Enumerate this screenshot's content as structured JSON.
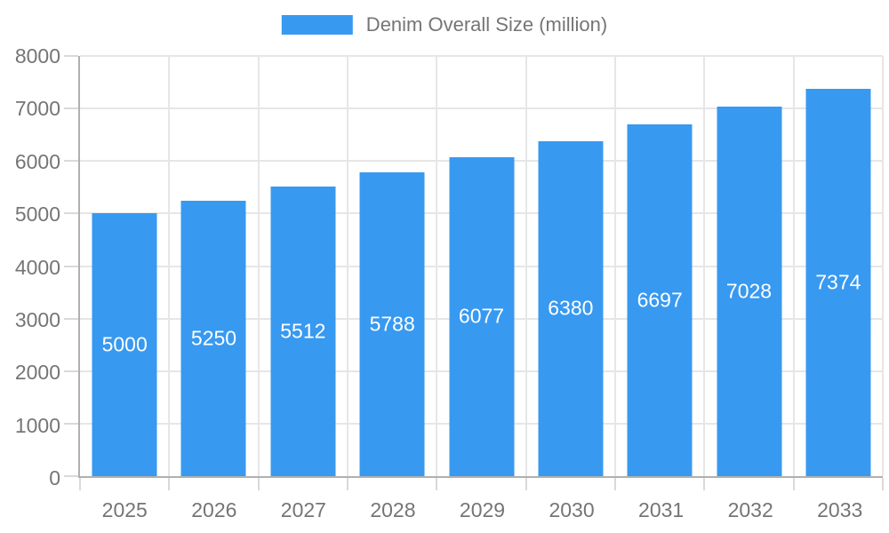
{
  "legend": {
    "label": "Denim Overall Size (million)"
  },
  "colors": {
    "bar": "#3899f0",
    "grid": "#e6e6e6",
    "axis": "#b0b0b0",
    "tick": "#d9d9d9",
    "text": "#757575",
    "bar_label": "#ffffff",
    "background": "#ffffff"
  },
  "chart_data": {
    "type": "bar",
    "title": "",
    "categories": [
      "2025",
      "2026",
      "2027",
      "2028",
      "2029",
      "2030",
      "2031",
      "2032",
      "2033"
    ],
    "series": [
      {
        "name": "Denim Overall Size (million)",
        "values": [
          5000,
          5250,
          5512,
          5788,
          6077,
          6380,
          6697,
          7028,
          7374
        ]
      }
    ],
    "xlabel": "",
    "ylabel": "",
    "ylim": [
      0,
      8000
    ],
    "y_tick_step": 1000,
    "y_tick_labels": [
      "0",
      "1000",
      "2000",
      "3000",
      "4000",
      "5000",
      "6000",
      "7000",
      "8000"
    ],
    "grid": true,
    "legend_position": "top-center",
    "value_labels": "inside-center"
  }
}
